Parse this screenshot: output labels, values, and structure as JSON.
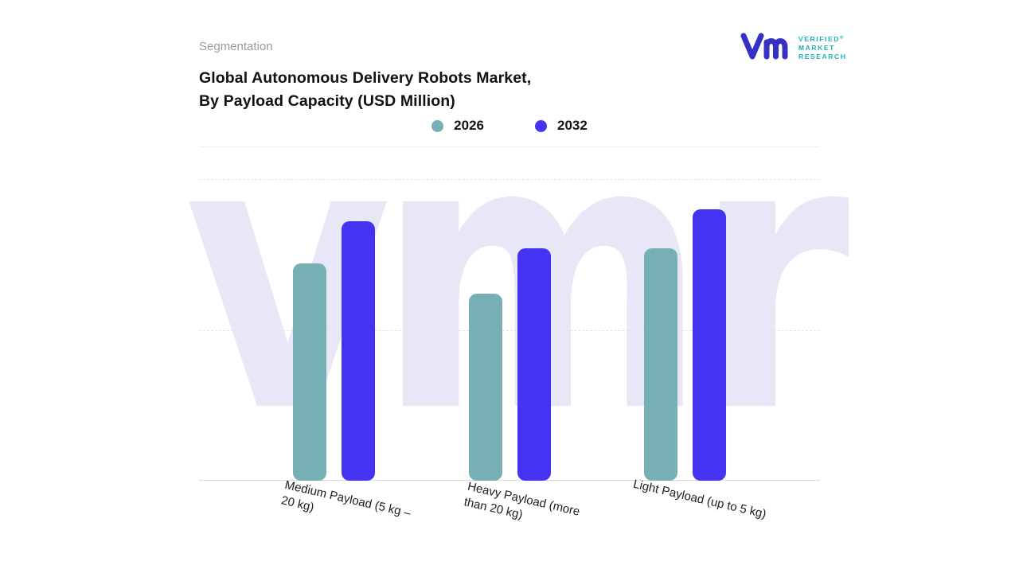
{
  "header": {
    "section_label": "Segmentation",
    "title_lines": [
      "Global Autonomous Delivery Robots Market,",
      "By Payload Capacity (USD Million)"
    ]
  },
  "logo": {
    "name_lines": [
      "VERIFIED",
      "MARKET",
      "RESEARCH"
    ],
    "registered": "®",
    "mark_color": "#3730c4",
    "text_color": "#1fb1b5"
  },
  "legend": {
    "items": [
      {
        "label": "2026",
        "color": "#76b0b4"
      },
      {
        "label": "2032",
        "color": "#4433f0"
      }
    ]
  },
  "chart_data": {
    "type": "bar",
    "title": "Global Autonomous Delivery Robots Market, By Payload Capacity (USD Million)",
    "categories": [
      "Medium Payload (5 kg – 20 kg)",
      "Heavy Payload (more than 20 kg)",
      "Light Payload (up to 5 kg)"
    ],
    "categories_display": [
      "Medium Payload (5 kg –\n20 kg)",
      "Heavy Payload (more\nthan 20 kg)",
      "Light Payload (up to 5 kg)"
    ],
    "series": [
      {
        "name": "2026",
        "color": "#76b0b4",
        "values": [
          72,
          62,
          77
        ]
      },
      {
        "name": "2032",
        "color": "#4433f0",
        "values": [
          86,
          77,
          90
        ]
      }
    ],
    "xlabel": "",
    "ylabel": "",
    "ylim": [
      0,
      100
    ],
    "grid": "dashed horizontal at 0%, 50%, 100%",
    "legend_position": "top-center",
    "watermark": "vmr",
    "watermark_color": "#e7e7f8",
    "note": "no y-axis tick labels shown; values estimated relative to chart height"
  }
}
